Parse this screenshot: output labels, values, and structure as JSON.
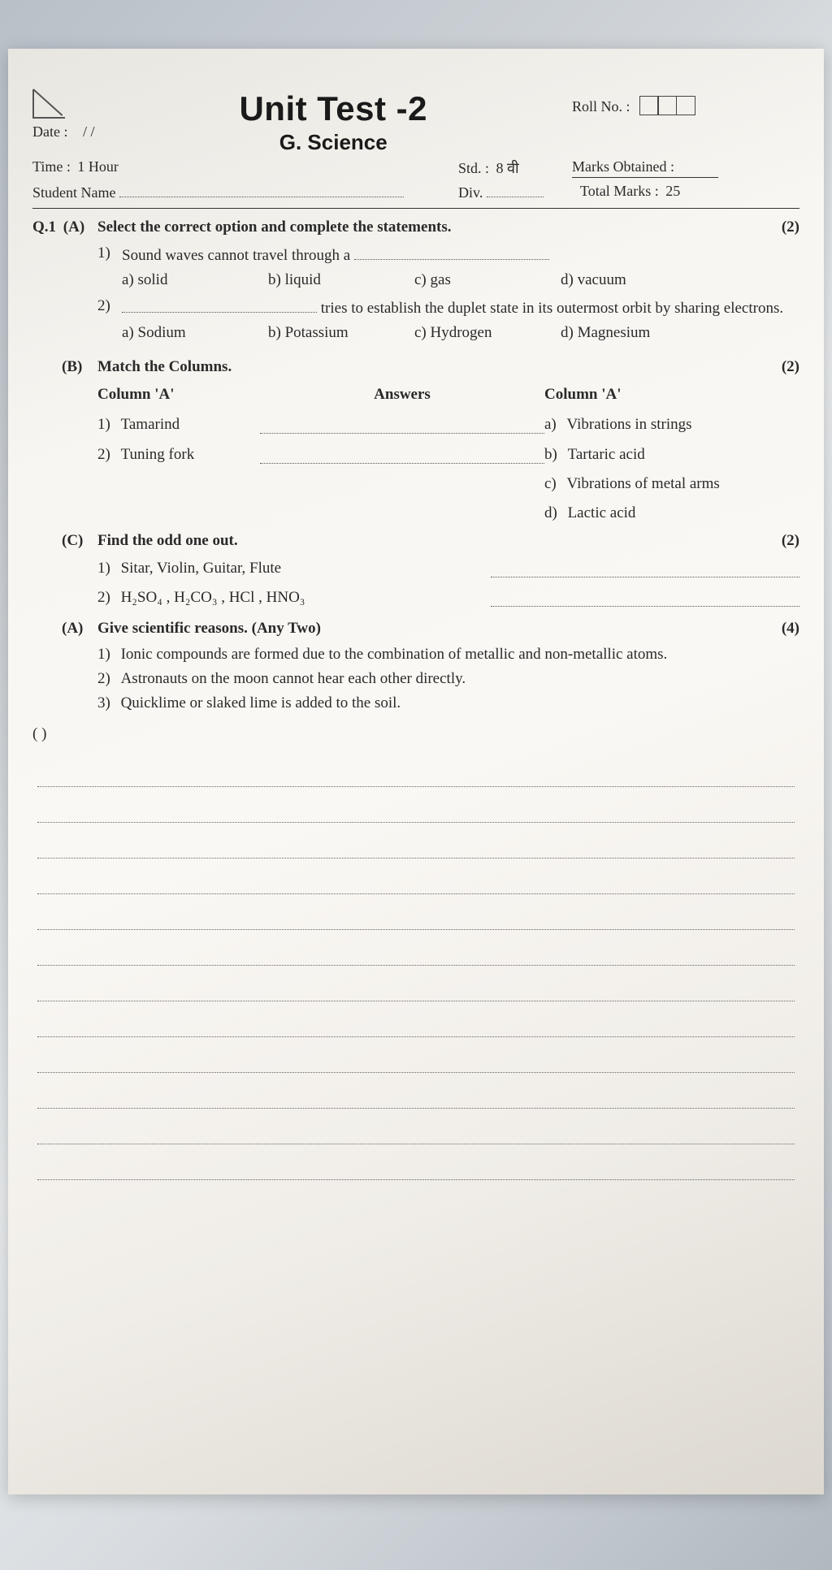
{
  "header": {
    "title": "Unit Test -2",
    "subject": "G. Science",
    "date_label": "Date :",
    "date_value": "/   /",
    "time_label": "Time :",
    "time_value": "1 Hour",
    "student_label": "Student Name",
    "roll_label": "Roll No. :",
    "std_label": "Std. :",
    "std_value": "8 वी",
    "div_label": "Div.",
    "marks_obtained_label": "Marks Obtained  :",
    "total_marks_label": "Total Marks  :",
    "total_marks_value": "25"
  },
  "q1": {
    "num": "Q.1",
    "partA": {
      "label": "(A)",
      "text": "Select the correct option and complete the statements.",
      "marks": "(2)",
      "items": [
        {
          "num": "1)",
          "stem": "Sound waves cannot travel through a",
          "opts": {
            "a": "a) solid",
            "b": "b) liquid",
            "c": "c) gas",
            "d": "d) vacuum"
          }
        },
        {
          "num": "2)",
          "stem_tail": "tries to establish the duplet state in its outermost orbit by sharing electrons.",
          "opts": {
            "a": "a) Sodium",
            "b": "b) Potassium",
            "c": "c) Hydrogen",
            "d": "d) Magnesium"
          }
        }
      ]
    },
    "partB": {
      "label": "(B)",
      "text": "Match the Columns.",
      "marks": "(2)",
      "colA_head": "Column 'A'",
      "ans_head": "Answers",
      "colB_head": "Column 'A'",
      "rowsA": [
        {
          "num": "1)",
          "text": "Tamarind"
        },
        {
          "num": "2)",
          "text": "Tuning fork"
        }
      ],
      "rowsB": [
        {
          "num": "a)",
          "text": "Vibrations in strings"
        },
        {
          "num": "b)",
          "text": "Tartaric acid"
        },
        {
          "num": "c)",
          "text": "Vibrations of metal arms"
        },
        {
          "num": "d)",
          "text": "Lactic acid"
        }
      ]
    },
    "partC": {
      "label": "(C)",
      "text": "Find the odd one out.",
      "marks": "(2)",
      "items": [
        {
          "num": "1)",
          "text": "Sitar, Violin, Guitar, Flute"
        },
        {
          "num": "2)",
          "text": "H₂SO₄ , H₂CO₃ , HCl , HNO₃"
        }
      ]
    }
  },
  "q2": {
    "partA": {
      "label": "(A)",
      "text": "Give scientific reasons. (Any Two)",
      "marks": "(4)",
      "items": [
        {
          "num": "1)",
          "text": "Ionic compounds are formed due to the combination of  metallic and non-metallic atoms."
        },
        {
          "num": "2)",
          "text": "Astronauts on the moon cannot hear each other directly."
        },
        {
          "num": "3)",
          "text": "Quicklime or slaked lime is added to the soil."
        }
      ]
    },
    "paren": "(   )"
  },
  "style": {
    "writing_line_count": 12
  }
}
